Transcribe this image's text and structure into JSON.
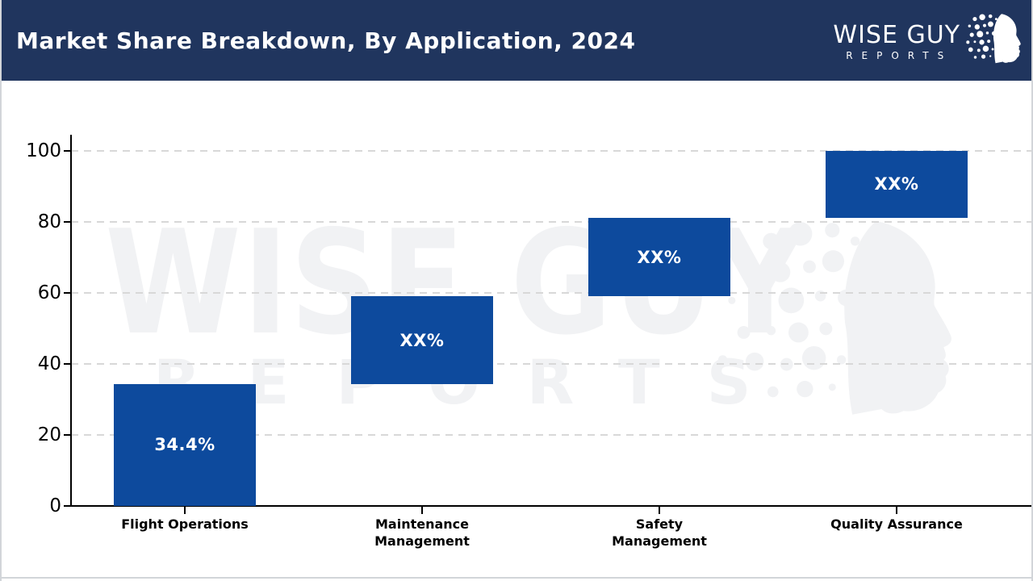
{
  "header": {
    "title": "Market Share Breakdown, By Application, 2024",
    "logo": {
      "name_top": "WISE GUY",
      "name_bottom": "REPORTS"
    }
  },
  "watermark": {
    "line1": "WISE GUY",
    "line2": "REPORTS"
  },
  "chart_data": {
    "type": "bar",
    "variant": "waterfall",
    "title": "Market Share Breakdown, By Application, 2024",
    "categories": [
      "Flight Operations",
      "Maintenance Management",
      "Safety Management",
      "Quality Assurance"
    ],
    "segments": [
      {
        "category": "Flight Operations",
        "start": 0,
        "end": 34.4,
        "label": "34.4%"
      },
      {
        "category": "Maintenance Management",
        "start": 34.4,
        "end": 59.0,
        "label": "XX%"
      },
      {
        "category": "Safety Management",
        "start": 59.0,
        "end": 81.2,
        "label": "XX%"
      },
      {
        "category": "Quality Assurance",
        "start": 81.2,
        "end": 100,
        "label": "XX%"
      }
    ],
    "xlabel": "",
    "ylabel": "",
    "ylim": [
      0,
      104.5
    ],
    "yticks": [
      0,
      20,
      40,
      60,
      80,
      100
    ],
    "grid": "horizontal-dashed",
    "legend": "none",
    "colors": {
      "bar": "#0d4a9d",
      "bar_label": "#ffffff",
      "grid": "#d8d8d8",
      "axis": "#000000",
      "header_bg": "#20355e",
      "watermark": "#f1f2f4"
    }
  }
}
